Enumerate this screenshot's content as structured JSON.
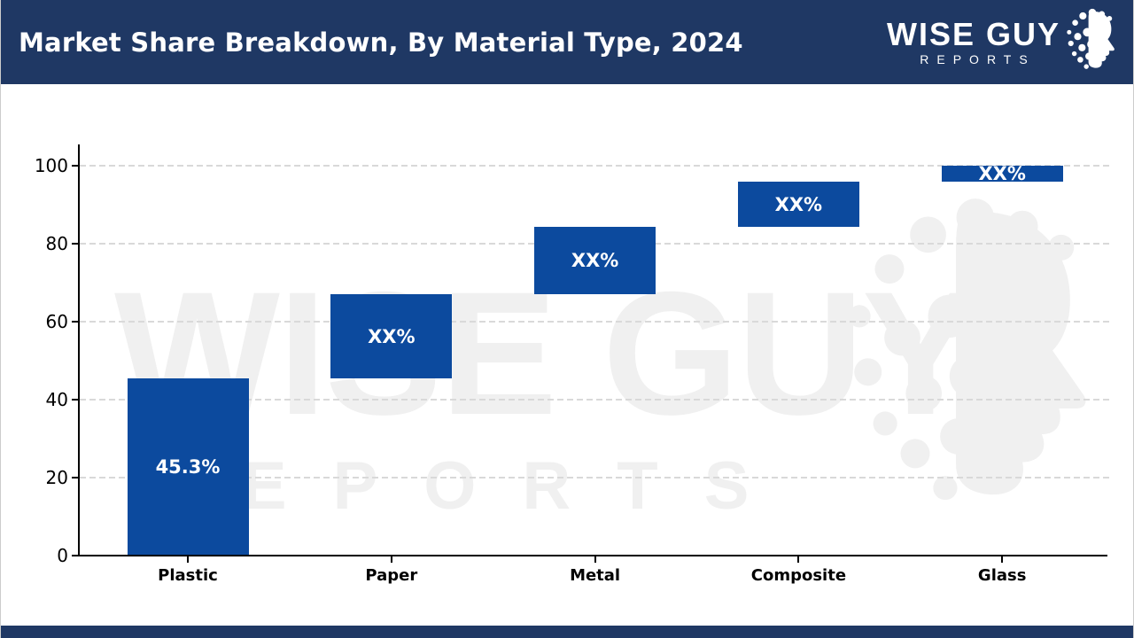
{
  "header": {
    "title": "Market Share Breakdown, By Material Type, 2024",
    "logo": {
      "line1": "WISE GUY",
      "line2": "REPORTS"
    }
  },
  "watermark": {
    "line1": "WISE GUY",
    "line2": "REPORTS"
  },
  "chart_data": {
    "type": "bar",
    "subtype": "waterfall",
    "title": "Market Share Breakdown, By Material Type, 2024",
    "xlabel": "",
    "ylabel": "",
    "categories": [
      "Plastic",
      "Paper",
      "Metal",
      "Composite",
      "Glass"
    ],
    "segments": [
      {
        "category": "Plastic",
        "start": 0,
        "end": 45.3,
        "label": "45.3%"
      },
      {
        "category": "Paper",
        "start": 45.3,
        "end": 66.9,
        "label": "XX%"
      },
      {
        "category": "Metal",
        "start": 66.9,
        "end": 84.1,
        "label": "XX%"
      },
      {
        "category": "Composite",
        "start": 84.1,
        "end": 95.7,
        "label": "XX%"
      },
      {
        "category": "Glass",
        "start": 95.7,
        "end": 100,
        "label": "XX%"
      }
    ],
    "yticks": [
      0,
      20,
      40,
      60,
      80,
      100
    ],
    "ylim": [
      0,
      105
    ],
    "grid": "horizontal-dashed",
    "legend": "none",
    "bar_color": "#0c4a9e",
    "bar_label_color": "#ffffff",
    "bar_label_overflow_color": "#16356e",
    "gridline_color": "#d9d9d9",
    "axis_color": "#000000",
    "header_color": "#1f3864",
    "watermark_color": "#f0f0f0"
  }
}
